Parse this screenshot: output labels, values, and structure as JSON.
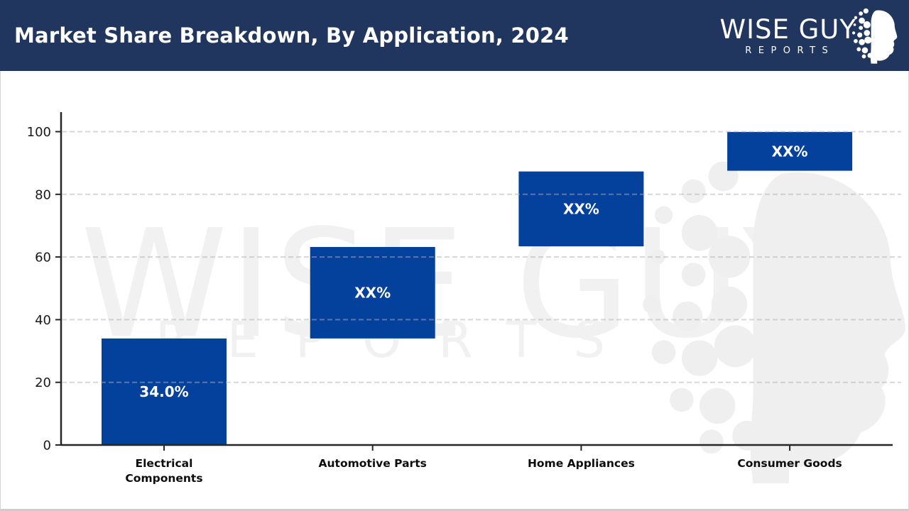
{
  "header": {
    "title": "Market Share Breakdown, By Application, 2024",
    "logo": {
      "primary": "WISE GUY",
      "secondary": "REPORTS"
    }
  },
  "watermark": {
    "primary": "WISE GUY",
    "secondary": "REPORTS"
  },
  "chart_data": {
    "type": "bar",
    "subtype": "waterfall",
    "title": "Market Share Breakdown, By Application, 2024",
    "categories": [
      "Electrical Components",
      "Automotive Parts",
      "Home Appliances",
      "Consumer Goods"
    ],
    "bars": [
      {
        "category": "Electrical Components",
        "start": 0,
        "end": 34.0,
        "label": "34.0%"
      },
      {
        "category": "Automotive Parts",
        "start": 34.0,
        "end": 63.2,
        "label": "XX%"
      },
      {
        "category": "Home Appliances",
        "start": 63.4,
        "end": 87.3,
        "label": "XX%"
      },
      {
        "category": "Consumer Goods",
        "start": 87.5,
        "end": 99.9,
        "label": "XX%"
      }
    ],
    "yticks": [
      0,
      20,
      40,
      60,
      80,
      100
    ],
    "ylim": [
      0,
      105
    ],
    "xlabel": "",
    "ylabel": "",
    "grid": "horizontal-dashed",
    "legend": "none",
    "bar_color": "#04419C",
    "bar_label_color": "#FFFFFF"
  },
  "colors": {
    "header_bg": "#21365F",
    "bar": "#04419C",
    "axis": "#262626",
    "gridline": "#D7D7D7",
    "watermark": "#F1F1F1"
  }
}
